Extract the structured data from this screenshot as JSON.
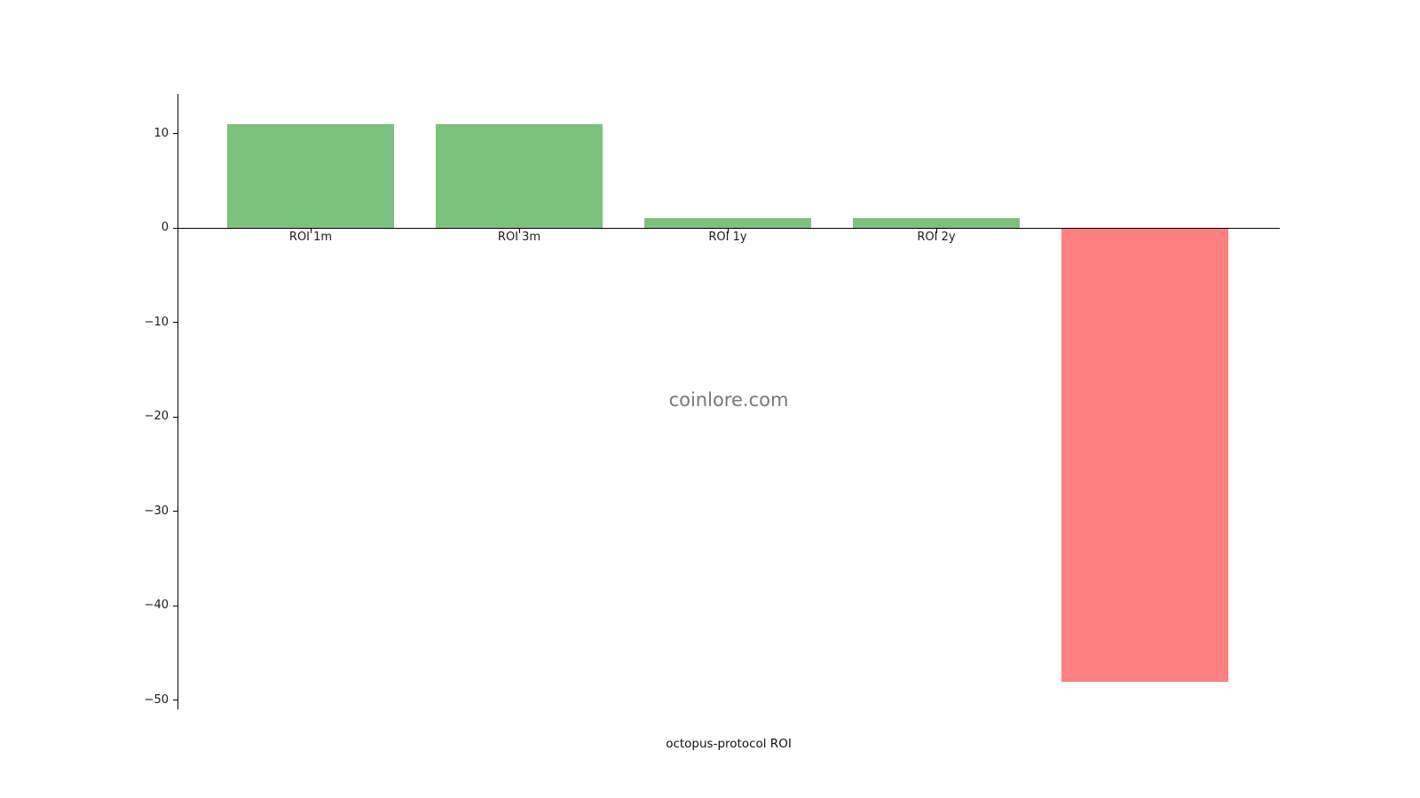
{
  "watermark": "coinlore.com",
  "chart_data": {
    "type": "bar",
    "title": "octopus-protocol ROI",
    "categories": [
      "ROI 1m",
      "ROI 3m",
      "ROI 1y",
      "ROI 2y",
      ""
    ],
    "values": [
      11,
      11,
      1,
      1,
      -48
    ],
    "xlabel": "",
    "ylabel": "",
    "yticks": [
      10,
      0,
      -10,
      -20,
      -30,
      -40,
      -50
    ],
    "ylim": [
      -51,
      14
    ],
    "grid": false,
    "legend": "none",
    "colors": {
      "positive_bar": "#7cc17e",
      "negative_bar": "#ff8080",
      "axis": "#000000",
      "tick_label": "#1a1a1a",
      "watermark_text": "#787878",
      "background": "#ffffff"
    }
  }
}
